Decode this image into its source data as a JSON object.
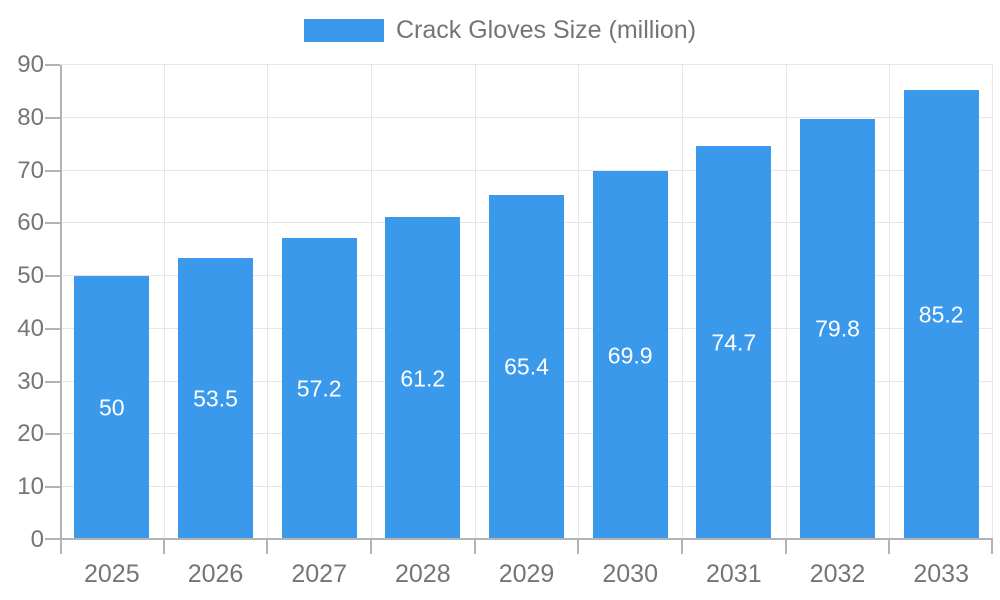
{
  "legend": {
    "label": "Crack Gloves Size (million)"
  },
  "colors": {
    "bar": "#3b99ec",
    "grid": "#e7e7e7",
    "axis": "#b3b3b3",
    "text": "#757575",
    "value_label": "#ffffff"
  },
  "chart_data": {
    "type": "bar",
    "title": "Crack Gloves Size (million)",
    "categories": [
      "2025",
      "2026",
      "2027",
      "2028",
      "2029",
      "2030",
      "2031",
      "2032",
      "2033"
    ],
    "values": [
      50,
      53.5,
      57.2,
      61.2,
      65.4,
      69.9,
      74.7,
      79.8,
      85.2
    ],
    "xlabel": "",
    "ylabel": "",
    "ylim": [
      0,
      90
    ],
    "y_ticks": [
      0,
      10,
      20,
      30,
      40,
      50,
      60,
      70,
      80,
      90
    ],
    "grid": true,
    "legend_position": "top-center",
    "value_labels_shown": true,
    "value_label_position": "middle-of-bar"
  }
}
